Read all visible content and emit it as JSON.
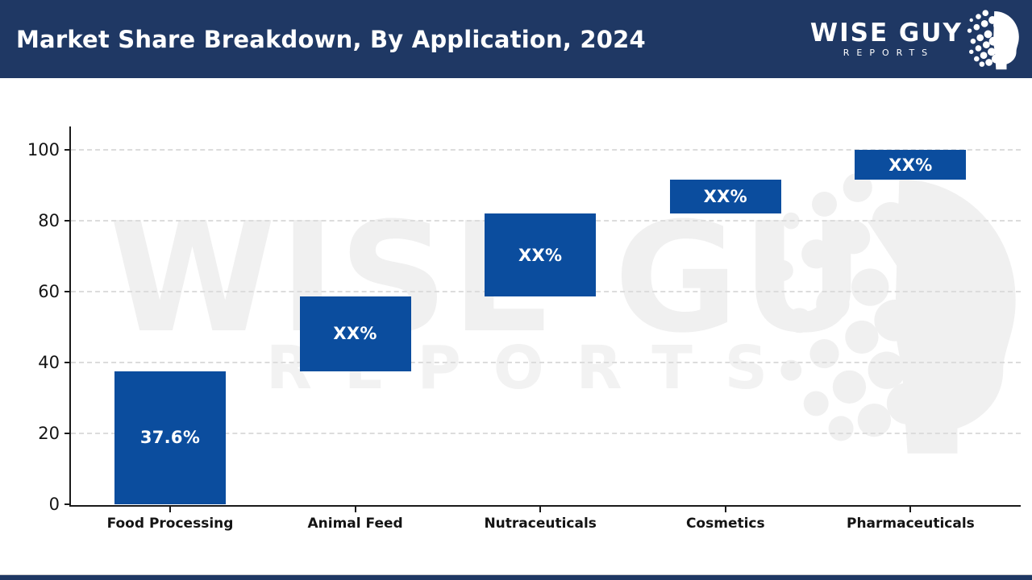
{
  "header": {
    "title": "Market Share Breakdown, By Application, 2024",
    "logo": {
      "line1": "WISE GUY",
      "line2": "REPORTS"
    }
  },
  "watermark": {
    "line1": "WISE GUY",
    "line2": "REPORTS"
  },
  "colors": {
    "header_bg": "#1f3864",
    "footer_bg": "#1f3864",
    "bar": "#0b4d9e",
    "bar_label": "#ffffff",
    "grid": "#dcdcdc",
    "axis": "#1a1a1a",
    "watermark": "#f0f0f0"
  },
  "chart_data": {
    "type": "bar",
    "variant": "waterfall",
    "title": "Market Share Breakdown, By Application, 2024",
    "categories": [
      "Food Processing",
      "Animal Feed",
      "Nutraceuticals",
      "Cosmetics",
      "Pharmaceuticals"
    ],
    "segments": [
      {
        "category": "Food Processing",
        "start": 0,
        "end": 37.6,
        "label": "37.6%"
      },
      {
        "category": "Animal Feed",
        "start": 37.6,
        "end": 58.6,
        "label": "XX%"
      },
      {
        "category": "Nutraceuticals",
        "start": 58.6,
        "end": 82,
        "label": "XX%"
      },
      {
        "category": "Cosmetics",
        "start": 82,
        "end": 91.5,
        "label": "XX%"
      },
      {
        "category": "Pharmaceuticals",
        "start": 91.5,
        "end": 100,
        "label": "XX%"
      }
    ],
    "xlabel": "",
    "ylabel": "",
    "ylim": [
      0,
      100
    ],
    "yticks": [
      0,
      20,
      40,
      60,
      80,
      100
    ],
    "grid": {
      "axis": "y",
      "style": "dashed"
    },
    "legend": null
  }
}
